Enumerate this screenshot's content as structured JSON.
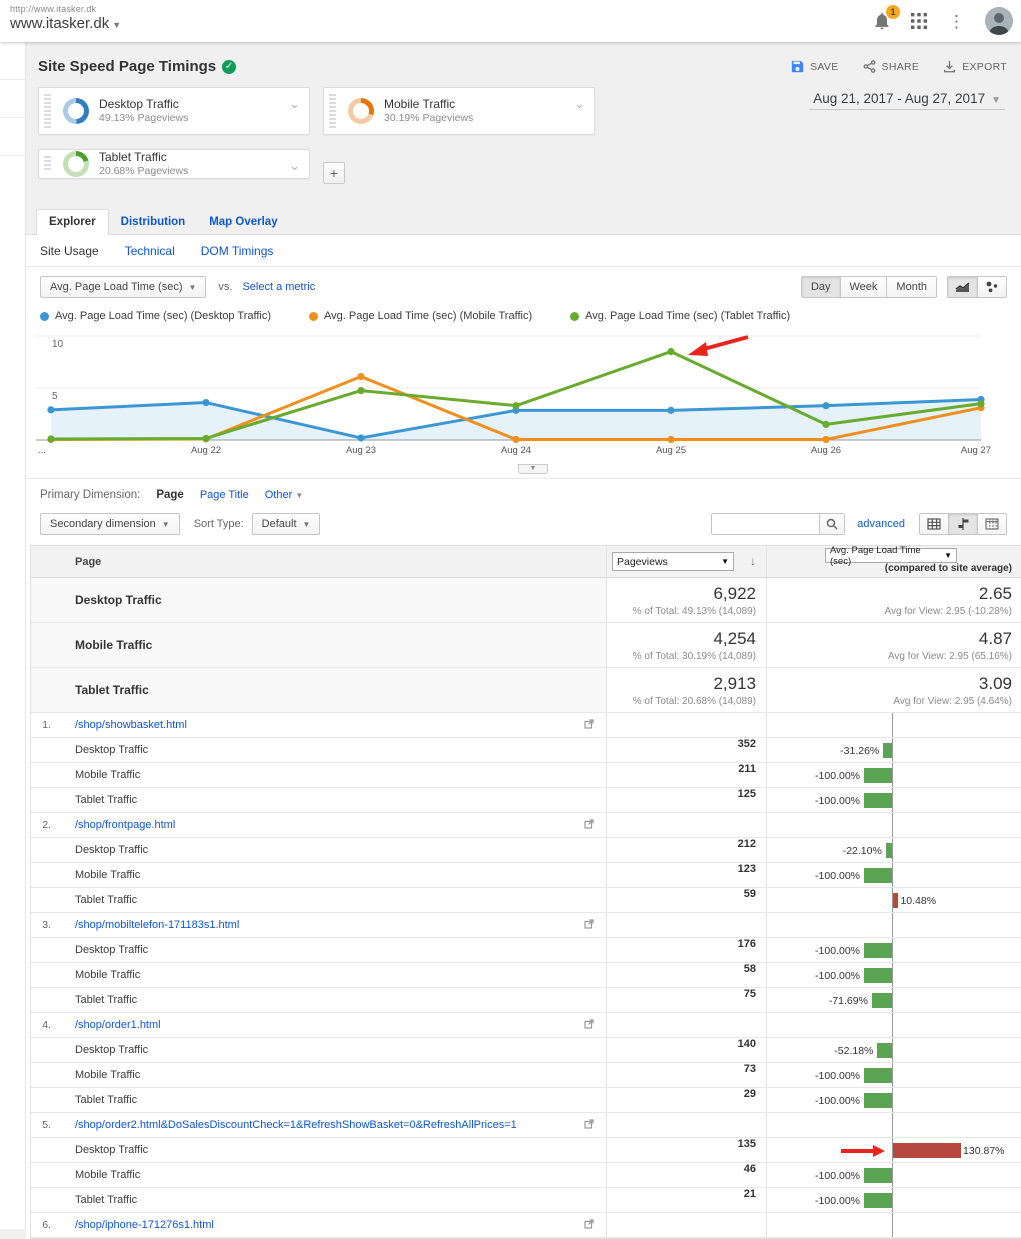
{
  "account": {
    "url": "http://www.itasker.dk",
    "name": "www.itasker.dk"
  },
  "topbar": {
    "notification_count": "1"
  },
  "report": {
    "title": "Site Speed Page Timings",
    "save_label": "SAVE",
    "share_label": "SHARE",
    "export_label": "EXPORT",
    "date_range": "Aug 21, 2017 - Aug 27, 2017"
  },
  "segments": [
    {
      "name": "Desktop Traffic",
      "subtitle": "49.13% Pageviews",
      "pct": 49.13,
      "color": "#2f7ec0",
      "color_light": "#a9cbe8"
    },
    {
      "name": "Mobile Traffic",
      "subtitle": "30.19% Pageviews",
      "pct": 30.19,
      "color": "#e8740c",
      "color_light": "#f5c9a2"
    },
    {
      "name": "Tablet Traffic",
      "subtitle": "20.68% Pageviews",
      "pct": 20.68,
      "color": "#4ca02c",
      "color_light": "#c2e0b4"
    }
  ],
  "tabs": [
    "Explorer",
    "Distribution",
    "Map Overlay"
  ],
  "subtabs": [
    "Site Usage",
    "Technical",
    "DOM Timings"
  ],
  "controls": {
    "metric_dropdown": "Avg. Page Load Time (sec)",
    "vs_label": "vs.",
    "select_metric": "Select a metric",
    "granularity": [
      "Day",
      "Week",
      "Month"
    ]
  },
  "chart_data": {
    "type": "line",
    "title": "Avg. Page Load Time (sec) by day",
    "x": [
      "Aug 21",
      "Aug 22",
      "Aug 23",
      "Aug 24",
      "Aug 25",
      "Aug 26",
      "Aug 27"
    ],
    "x_tick_labels": [
      "...",
      "Aug 22",
      "Aug 23",
      "Aug 24",
      "Aug 25",
      "Aug 26",
      "Aug 27"
    ],
    "ylim": [
      0,
      10
    ],
    "yticks": [
      5,
      10
    ],
    "grid": true,
    "legend_position": "top",
    "series": [
      {
        "name": "Avg. Page Load Time (sec) (Desktop Traffic)",
        "color": "#3b97d3",
        "area": true,
        "values": [
          2.9,
          3.6,
          0.2,
          2.85,
          2.85,
          3.3,
          3.9
        ]
      },
      {
        "name": "Avg. Page Load Time (sec) (Mobile Traffic)",
        "color": "#ef8f20",
        "area": false,
        "values": [
          0.05,
          0.1,
          6.1,
          0.05,
          0.05,
          0.05,
          3.1
        ]
      },
      {
        "name": "Avg. Page Load Time (sec) (Tablet Traffic)",
        "color": "#68ab2e",
        "area": false,
        "values": [
          0.1,
          0.15,
          4.75,
          3.3,
          8.5,
          1.5,
          3.5
        ]
      }
    ],
    "annotations": [
      {
        "type": "red-arrow",
        "target": "Tablet Traffic peak on Aug 25"
      }
    ]
  },
  "primary_dimension": {
    "label": "Primary Dimension:",
    "active": "Page",
    "options": [
      "Page Title",
      "Other"
    ]
  },
  "table_controls": {
    "secondary_dimension": "Secondary dimension",
    "sort_label": "Sort Type:",
    "sort_value": "Default",
    "search_placeholder": "",
    "advanced": "advanced"
  },
  "table": {
    "col_page": "Page",
    "col_pageviews": "Pageviews",
    "col_metric": "Avg. Page Load Time (sec)",
    "col_metric_note": "(compared to site average)",
    "summary": [
      {
        "name": "Desktop Traffic",
        "pageviews": "6,922",
        "pv_note": "% of Total: 49.13% (14,089)",
        "avg": "2.65",
        "avg_note": "Avg for View: 2.95 (-10.28%)"
      },
      {
        "name": "Mobile Traffic",
        "pageviews": "4,254",
        "pv_note": "% of Total: 30.19% (14,089)",
        "avg": "4.87",
        "avg_note": "Avg for View: 2.95 (65.16%)"
      },
      {
        "name": "Tablet Traffic",
        "pageviews": "2,913",
        "pv_note": "% of Total: 20.68% (14,089)",
        "avg": "3.09",
        "avg_note": "Avg for View: 2.95 (4.64%)"
      }
    ],
    "rows": [
      {
        "index": "1.",
        "page": "/shop/showbasket.html",
        "segments": [
          {
            "name": "Desktop Traffic",
            "pageviews": "352",
            "pct": -31.26,
            "label": "-31.26%"
          },
          {
            "name": "Mobile Traffic",
            "pageviews": "211",
            "pct": -100,
            "label": "-100.00%"
          },
          {
            "name": "Tablet Traffic",
            "pageviews": "125",
            "pct": -100,
            "label": "-100.00%"
          }
        ]
      },
      {
        "index": "2.",
        "page": "/shop/frontpage.html",
        "segments": [
          {
            "name": "Desktop Traffic",
            "pageviews": "212",
            "pct": -22.1,
            "label": "-22.10%"
          },
          {
            "name": "Mobile Traffic",
            "pageviews": "123",
            "pct": -100,
            "label": "-100.00%"
          },
          {
            "name": "Tablet Traffic",
            "pageviews": "59",
            "pct": 10.48,
            "label": "10.48%"
          }
        ]
      },
      {
        "index": "3.",
        "page": "/shop/mobiltelefon-171183s1.html",
        "segments": [
          {
            "name": "Desktop Traffic",
            "pageviews": "176",
            "pct": -100,
            "label": "-100.00%"
          },
          {
            "name": "Mobile Traffic",
            "pageviews": "58",
            "pct": -100,
            "label": "-100.00%"
          },
          {
            "name": "Tablet Traffic",
            "pageviews": "75",
            "pct": -71.69,
            "label": "-71.69%"
          }
        ]
      },
      {
        "index": "4.",
        "page": "/shop/order1.html",
        "segments": [
          {
            "name": "Desktop Traffic",
            "pageviews": "140",
            "pct": -52.18,
            "label": "-52.18%"
          },
          {
            "name": "Mobile Traffic",
            "pageviews": "73",
            "pct": -100,
            "label": "-100.00%"
          },
          {
            "name": "Tablet Traffic",
            "pageviews": "29",
            "pct": -100,
            "label": "-100.00%"
          }
        ]
      },
      {
        "index": "5.",
        "page": "/shop/order2.html&DoSalesDiscountCheck=1&RefreshShowBasket=0&RefreshAllPrices=1",
        "segments": [
          {
            "name": "Desktop Traffic",
            "pageviews": "135",
            "pct": 130.87,
            "label": "130.87%",
            "arrow": true
          },
          {
            "name": "Mobile Traffic",
            "pageviews": "46",
            "pct": -100,
            "label": "-100.00%"
          },
          {
            "name": "Tablet Traffic",
            "pageviews": "21",
            "pct": -100,
            "label": "-100.00%"
          }
        ]
      },
      {
        "index": "6.",
        "page": "/shop/iphone-171276s1.html",
        "segments": []
      }
    ]
  }
}
